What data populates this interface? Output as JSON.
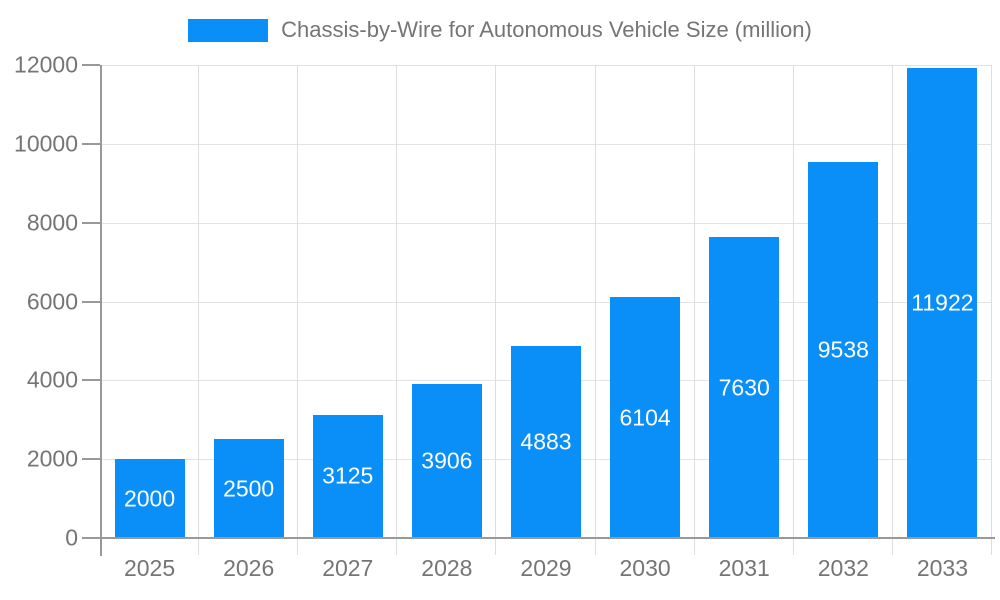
{
  "chart_data": {
    "type": "bar",
    "title": "Chassis-by-Wire for Autonomous Vehicle Size (million)",
    "legend_entries": [
      "Chassis-by-Wire for Autonomous Vehicle Size (million)"
    ],
    "legend_position": "top-center",
    "categories": [
      "2025",
      "2026",
      "2027",
      "2028",
      "2029",
      "2030",
      "2031",
      "2032",
      "2033"
    ],
    "values": [
      2000,
      2500,
      3125,
      3906,
      4883,
      6104,
      7630,
      9538,
      11922
    ],
    "xlabel": "",
    "ylabel": "",
    "ylim": [
      0,
      12000
    ],
    "yticks": [
      0,
      2000,
      4000,
      6000,
      8000,
      10000,
      12000
    ],
    "grid": true,
    "value_labels_inside_bars": true,
    "colors": {
      "bar": "#0a8ff9",
      "value_label": "#ffffff",
      "axis": "#999999",
      "grid": "#e3e3e3",
      "text": "#757575",
      "background": "#ffffff"
    }
  }
}
